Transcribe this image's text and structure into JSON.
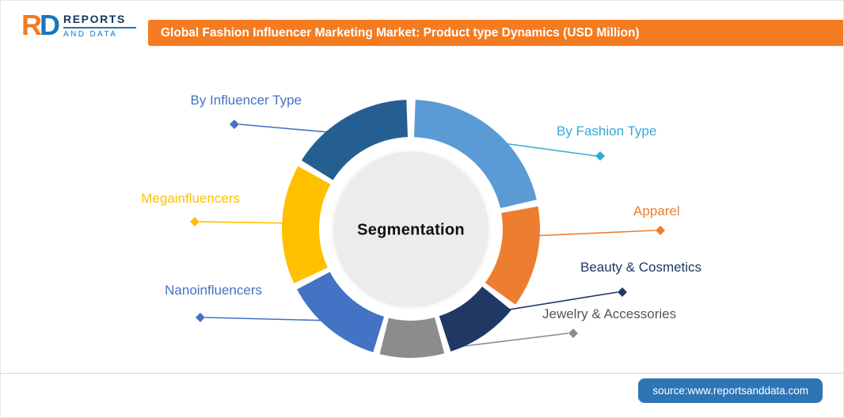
{
  "brand": {
    "logo_r": "R",
    "logo_d": "D",
    "name_line1": "REPORTS",
    "name_line2": "AND DATA"
  },
  "header": {
    "title": "Global Fashion Influencer Marketing Market: Product type Dynamics (USD Million)",
    "bar_color": "#F47B20"
  },
  "footer": {
    "source": "source:www.reportsanddata.com",
    "badge_color": "#2E75B6"
  },
  "chart_data": {
    "type": "pie",
    "subtype": "donut",
    "title": "Segmentation",
    "center_label": "Segmentation",
    "center_fill": "#ECECEC",
    "legend_position": "callouts-around-donut",
    "segments": [
      {
        "id": "by-fashion-type",
        "label": "By Fashion Type",
        "color": "#5B9BD5",
        "label_color": "#33A9DC",
        "accent": "#33A9DC",
        "start_deg": 2,
        "end_deg": 77
      },
      {
        "id": "apparel",
        "label": "Apparel",
        "color": "#ED7D31",
        "label_color": "#ED7D31",
        "accent": "#ED7D31",
        "start_deg": 80,
        "end_deg": 126
      },
      {
        "id": "beauty-cosmetics",
        "label": "Beauty & Cosmetics",
        "color": "#1F3864",
        "label_color": "#1F3864",
        "accent": "#1F3864",
        "start_deg": 129,
        "end_deg": 162
      },
      {
        "id": "jewelry-accessories",
        "label": "Jewelry & Accessories",
        "color": "#8C8C8C",
        "label_color": "#555555",
        "accent": "#8C8C8C",
        "start_deg": 165,
        "end_deg": 194
      },
      {
        "id": "nanoinfluencers",
        "label": "Nanoinfluencers",
        "color": "#4472C4",
        "label_color": "#4472C4",
        "accent": "#4472C4",
        "start_deg": 197,
        "end_deg": 242
      },
      {
        "id": "megainfluencers",
        "label": "Megainfluencers",
        "color": "#FFC000",
        "label_color": "#FFC000",
        "accent": "#FFC000",
        "start_deg": 245,
        "end_deg": 299
      },
      {
        "id": "by-influencer-type",
        "label": "By Influencer Type",
        "color": "#255E91",
        "label_color": "#4472C4",
        "accent": "#4472C4",
        "start_deg": 302,
        "end_deg": 358
      }
    ]
  }
}
